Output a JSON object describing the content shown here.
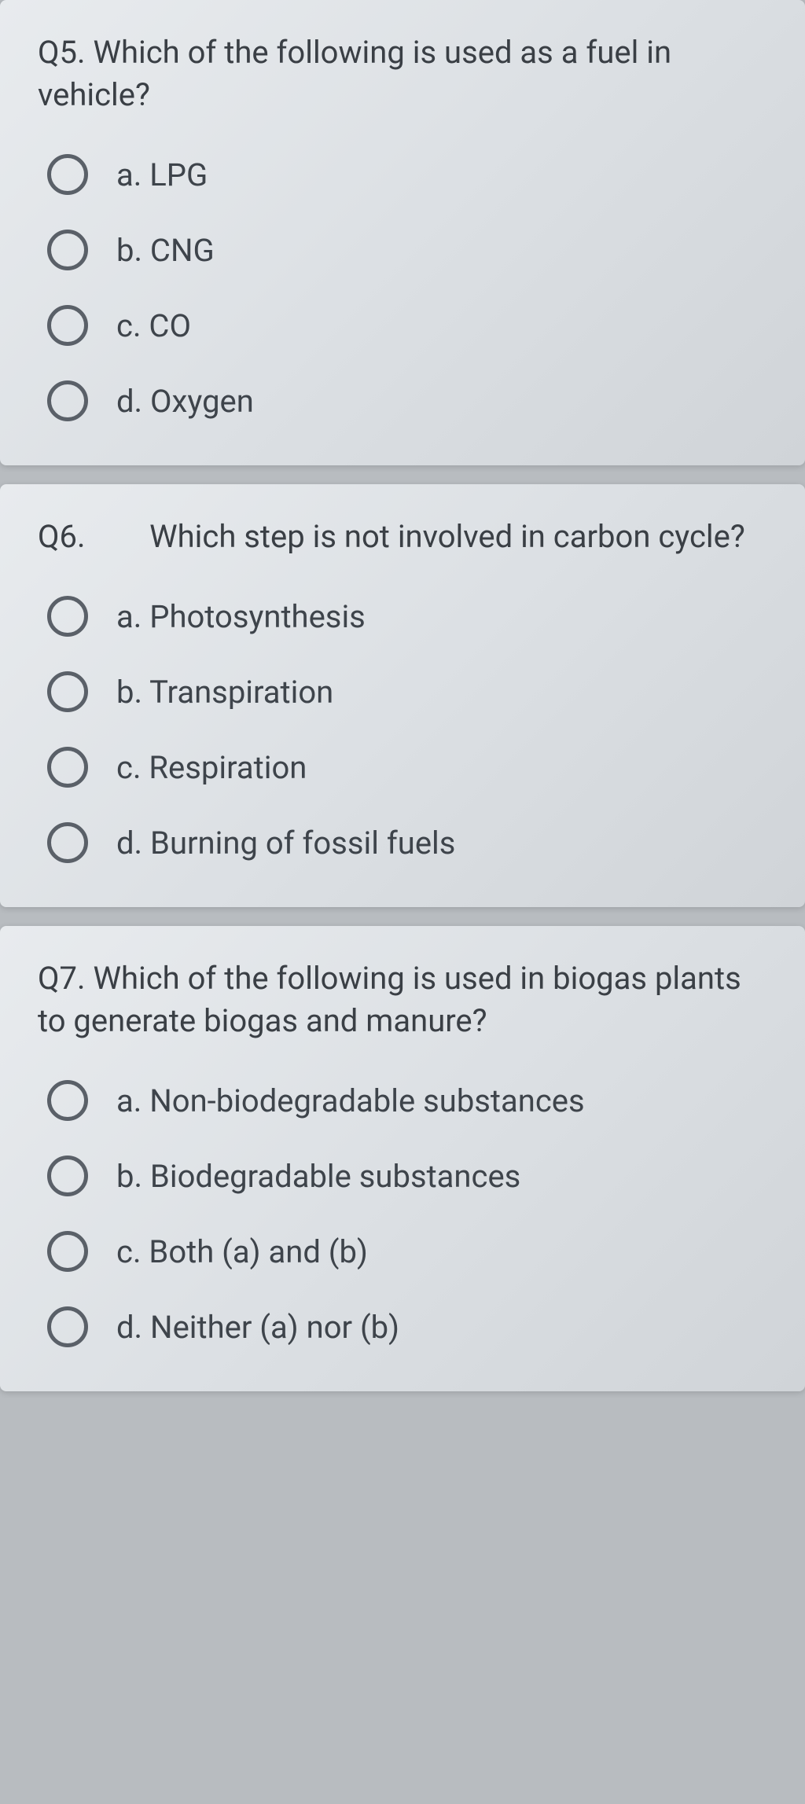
{
  "questions": [
    {
      "prompt": "Q5. Which of the following is used as a fuel in vehicle?",
      "options": [
        {
          "label": "a. LPG"
        },
        {
          "label": "b. CNG"
        },
        {
          "label": "c. CO"
        },
        {
          "label": "d. Oxygen"
        }
      ]
    },
    {
      "prompt": "Q6.  Which step is not involved in carbon cycle?",
      "options": [
        {
          "label": "a. Photosynthesis"
        },
        {
          "label": "b. Transpiration"
        },
        {
          "label": "c. Respiration"
        },
        {
          "label": "d. Burning of fossil fuels"
        }
      ]
    },
    {
      "prompt": "Q7. Which of the following is used in biogas plants to generate biogas and manure?",
      "options": [
        {
          "label": "a. Non-biodegradable substances"
        },
        {
          "label": "b. Biodegradable substances"
        },
        {
          "label": "c. Both (a) and (b)"
        },
        {
          "label": "d. Neither (a) nor (b)"
        }
      ]
    }
  ],
  "styling": {
    "card_background_gradient": [
      "#e8ebee",
      "#dce0e4",
      "#d0d4d8"
    ],
    "page_background": "#b8bcc0",
    "text_color": "#3a3f45",
    "option_text_color": "#3e444b",
    "radio_border_color": "#5a6068",
    "question_fontsize": 40,
    "option_fontsize": 40,
    "radio_size": 52,
    "radio_border_width": 5,
    "card_gap": 24,
    "option_gap": 44
  }
}
